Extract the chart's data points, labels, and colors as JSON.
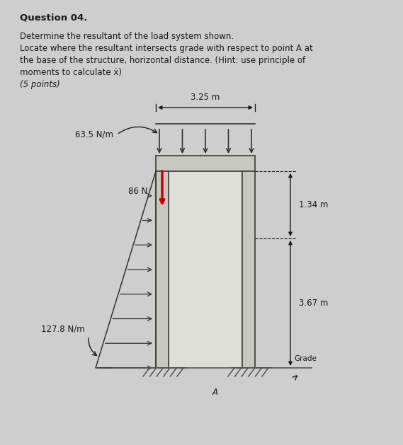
{
  "title": "Question 04.",
  "description_lines": [
    "Determine the resultant of the load system shown.",
    "Locate where the resultant intersects grade with respect to point A at",
    "the base of the structure, horizontal distance. (Hint: use principle of",
    "moments to calculate ẋ)",
    "(5 points)"
  ],
  "background_color": "#cecece",
  "text_color": "#1a1a1a",
  "dim_3p25": "3.25 m",
  "dim_1p34": "1.34 m",
  "dim_3p67": "3.67 m",
  "load_63p5": "63.5 N/m",
  "load_86": "86 N",
  "load_127p8": "127.8 N/m",
  "grade_label": "Grade",
  "point_A": "A",
  "wall_fill": "#d0d0c8",
  "wall_inner_fill": "#e8e8d8",
  "wall_edge": "#444444",
  "arrow_color": "#333333",
  "red_arrow": "#cc0000"
}
